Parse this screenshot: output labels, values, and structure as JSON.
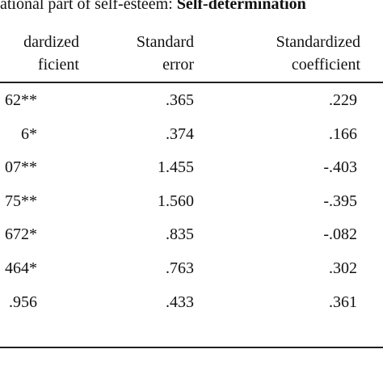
{
  "caption": {
    "prefix": "ational part of self-esteem: ",
    "bold": "Self-determination"
  },
  "headers": [
    {
      "line1": "dardized",
      "line2": "ficient"
    },
    {
      "line1": "Standard",
      "line2": "error"
    },
    {
      "line1": "Standardized",
      "line2": "coefficient"
    }
  ],
  "rows": [
    {
      "c1": "62**",
      "c2": ".365",
      "c3": ".229"
    },
    {
      "c1": "6*",
      "c2": ".374",
      "c3": ".166"
    },
    {
      "c1": "07**",
      "c2": "1.455",
      "c3": "-.403"
    },
    {
      "c1": "75**",
      "c2": "1.560",
      "c3": "-.395"
    },
    {
      "c1": "672*",
      "c2": ".835",
      "c3": "-.082"
    },
    {
      "c1": "464*",
      "c2": ".763",
      "c3": ".302"
    },
    {
      "c1": ".956",
      "c2": ".433",
      "c3": ".361"
    }
  ]
}
